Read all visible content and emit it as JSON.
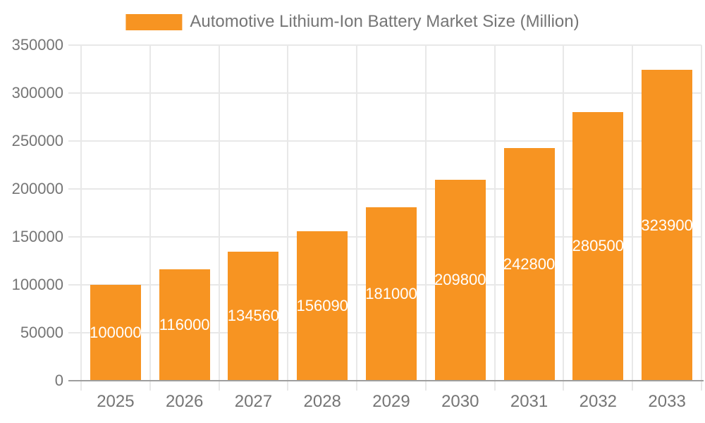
{
  "legend": {
    "label": "Automotive Lithium-Ion Battery Market Size (Million)",
    "swatch_color": "#F79422"
  },
  "chart_data": {
    "type": "bar",
    "title": "Automotive Lithium-Ion Battery Market Size (Million)",
    "categories": [
      "2025",
      "2026",
      "2027",
      "2028",
      "2029",
      "2030",
      "2031",
      "2032",
      "2033"
    ],
    "values": [
      100000,
      116000,
      134560,
      156090,
      181000,
      209800,
      242800,
      280500,
      323900
    ],
    "bar_labels": [
      "100000",
      "116000",
      "134560",
      "156090",
      "181000",
      "209800",
      "242800",
      "280500",
      "323900"
    ],
    "series": [
      {
        "name": "Automotive Lithium-Ion Battery Market Size (Million)",
        "values": [
          100000,
          116000,
          134560,
          156090,
          181000,
          209800,
          242800,
          280500,
          323900
        ]
      }
    ],
    "xlabel": "",
    "ylabel": "",
    "ylim": [
      0,
      350000
    ],
    "ytick_interval": 50000,
    "ytick_labels": [
      "0",
      "50000",
      "100000",
      "150000",
      "200000",
      "250000",
      "300000",
      "350000"
    ],
    "grid": true,
    "legend_position": "top-center",
    "bar_color": "#F79422",
    "bar_label_color": "#FFFFFF",
    "axis_text_color": "#757575",
    "gridline_color": "#E8E8E8",
    "baseline_color": "#9E9E9E"
  }
}
